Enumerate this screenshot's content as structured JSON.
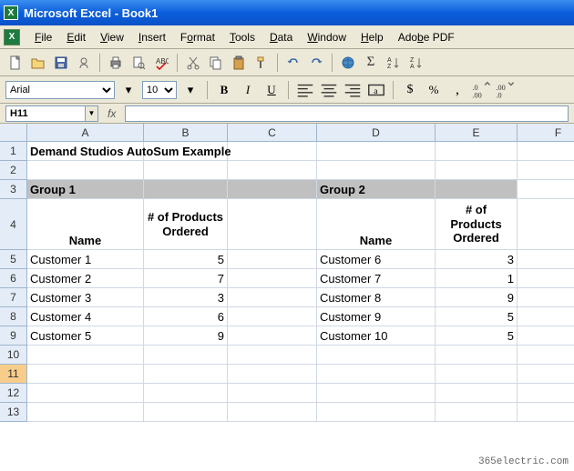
{
  "window": {
    "title": "Microsoft Excel - Book1"
  },
  "menus": [
    {
      "key": "F",
      "rest": "ile"
    },
    {
      "key": "E",
      "rest": "dit"
    },
    {
      "key": "V",
      "rest": "iew"
    },
    {
      "key": "I",
      "rest": "nsert"
    },
    {
      "key": "F",
      "pre": "F",
      "label": "Format",
      "u": "o",
      "rest": "rmat"
    },
    {
      "key": "T",
      "rest": "ools"
    },
    {
      "key": "D",
      "rest": "ata"
    },
    {
      "key": "W",
      "rest": "indow"
    },
    {
      "key": "H",
      "rest": "elp"
    },
    {
      "label": "Adobe PDF",
      "u": "b",
      "pre": "Ado",
      "rest": "e PDF"
    }
  ],
  "format": {
    "fontname": "Arial",
    "fontsize": "10"
  },
  "namebox": "H11",
  "columns": [
    {
      "label": "A",
      "width": 128
    },
    {
      "label": "B",
      "width": 92
    },
    {
      "label": "C",
      "width": 98
    },
    {
      "label": "D",
      "width": 130
    },
    {
      "label": "E",
      "width": 90
    },
    {
      "label": "F",
      "width": 90
    }
  ],
  "rows": [
    "1",
    "2",
    "3",
    "4",
    "5",
    "6",
    "7",
    "8",
    "9",
    "10",
    "11",
    "12",
    "13"
  ],
  "cells": {
    "a1": "Demand Studios AutoSum Example",
    "a3": "Group 1",
    "d3": "Group 2",
    "a4": "Name",
    "b4": "# of Products Ordered",
    "d4": "Name",
    "e4": "# of Products Ordered",
    "a5": "Customer 1",
    "b5": "5",
    "d5": "Customer 6",
    "e5": "3",
    "a6": "Customer 2",
    "b6": "7",
    "d6": "Customer 7",
    "e6": "1",
    "a7": "Customer 3",
    "b7": "3",
    "d7": "Customer 8",
    "e7": "9",
    "a8": "Customer 4",
    "b8": "6",
    "d8": "Customer 9",
    "e8": "5",
    "a9": "Customer 5",
    "b9": "9",
    "d9": "Customer 10",
    "e9": "5"
  },
  "colors": {
    "titlebar_start": "#3b8ef0",
    "titlebar_end": "#0a52c8",
    "menubar_bg": "#ece9d8",
    "header_bg": "#e4ecf7",
    "grid_border": "#d0d7e5",
    "grey_cell": "#c0c0c0",
    "selected_row_hdr": "#f8cd8a"
  },
  "watermark": "365electric.com"
}
